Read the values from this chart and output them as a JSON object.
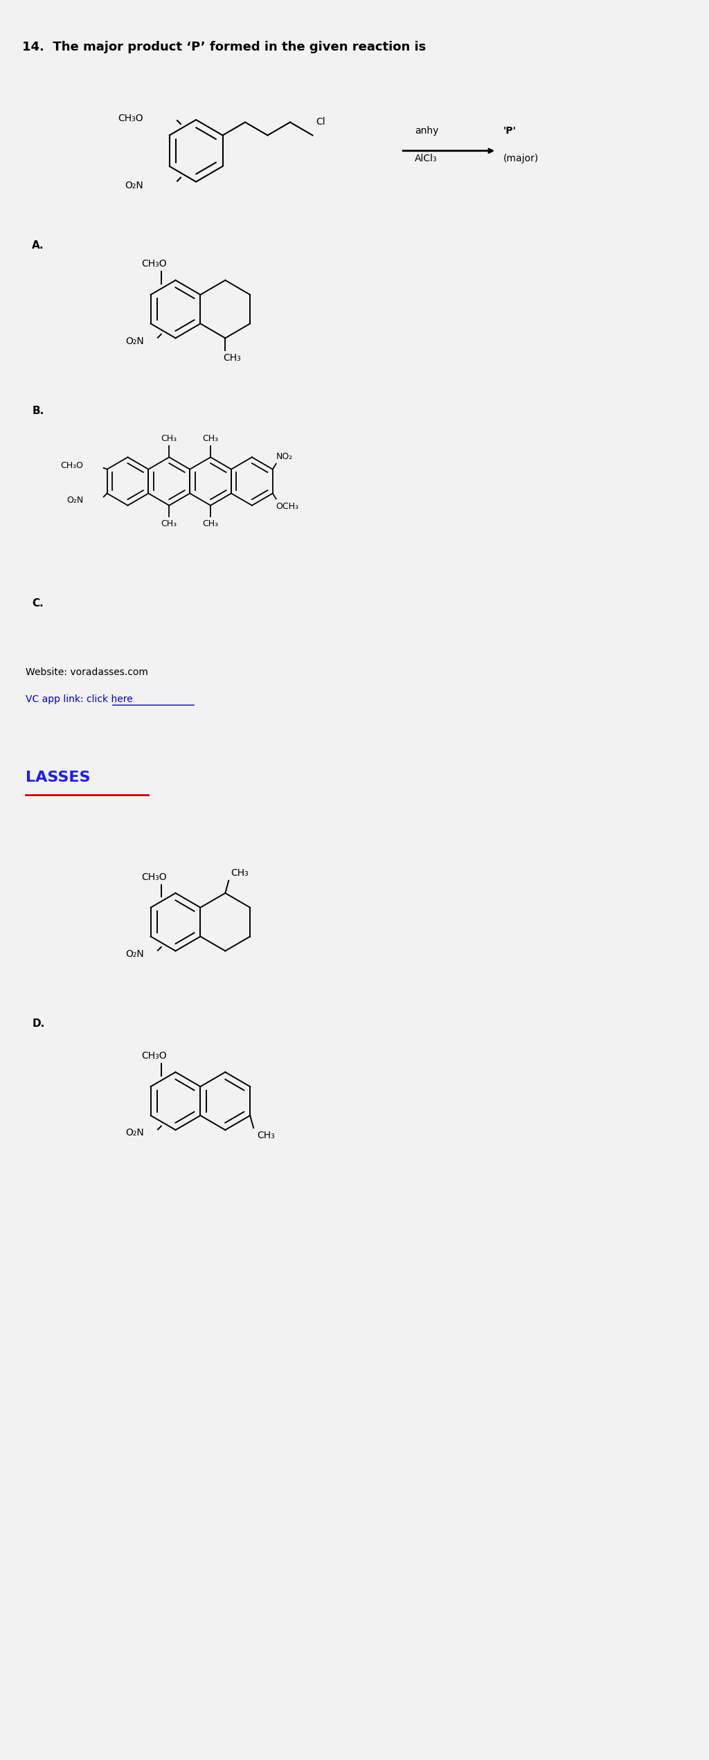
{
  "title": "14.  The major product ‘P’ formed in the given reaction is",
  "title_fontsize": 13,
  "bg_color": "#f0f0f0",
  "text_color": "#000000",
  "option_labels": [
    "A.",
    "B.",
    "C.",
    "D."
  ],
  "website_text": "Website: voradasses.com",
  "app_text": "VC app link: click here",
  "lasses_text": "LASSES"
}
